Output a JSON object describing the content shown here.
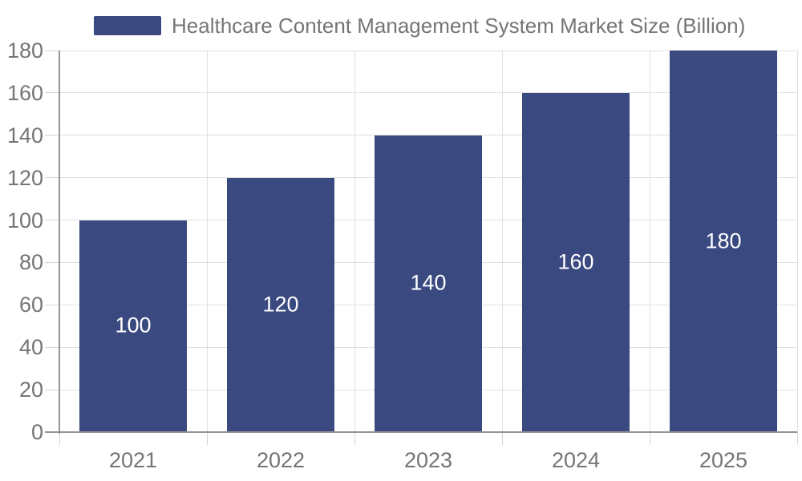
{
  "legend": {
    "label": "Healthcare Content Management System Market Size (Billion)",
    "swatch_color": "#3A4A81"
  },
  "chart_data": {
    "type": "bar",
    "title": "Healthcare Content Management System Market Size (Billion)",
    "categories": [
      "2021",
      "2022",
      "2023",
      "2024",
      "2025"
    ],
    "series": [
      {
        "name": "Healthcare Content Management System Market Size (Billion)",
        "values": [
          100,
          120,
          140,
          160,
          180
        ],
        "color": "#3A4A81"
      }
    ],
    "bar_labels": [
      "100",
      "120",
      "140",
      "160",
      "180"
    ],
    "xlabel": "",
    "ylabel": "",
    "ylim": [
      0,
      180
    ],
    "yticks": [
      0,
      20,
      40,
      60,
      80,
      100,
      120,
      140,
      160,
      180
    ],
    "grid": true,
    "legend_position": "top",
    "colors": {
      "grid": "#e0e0e0",
      "tick": "#d4d4d4",
      "axis": "#949494",
      "axis_text": "#757575",
      "bar_label_text": "#ffffff",
      "background": "#ffffff"
    }
  }
}
